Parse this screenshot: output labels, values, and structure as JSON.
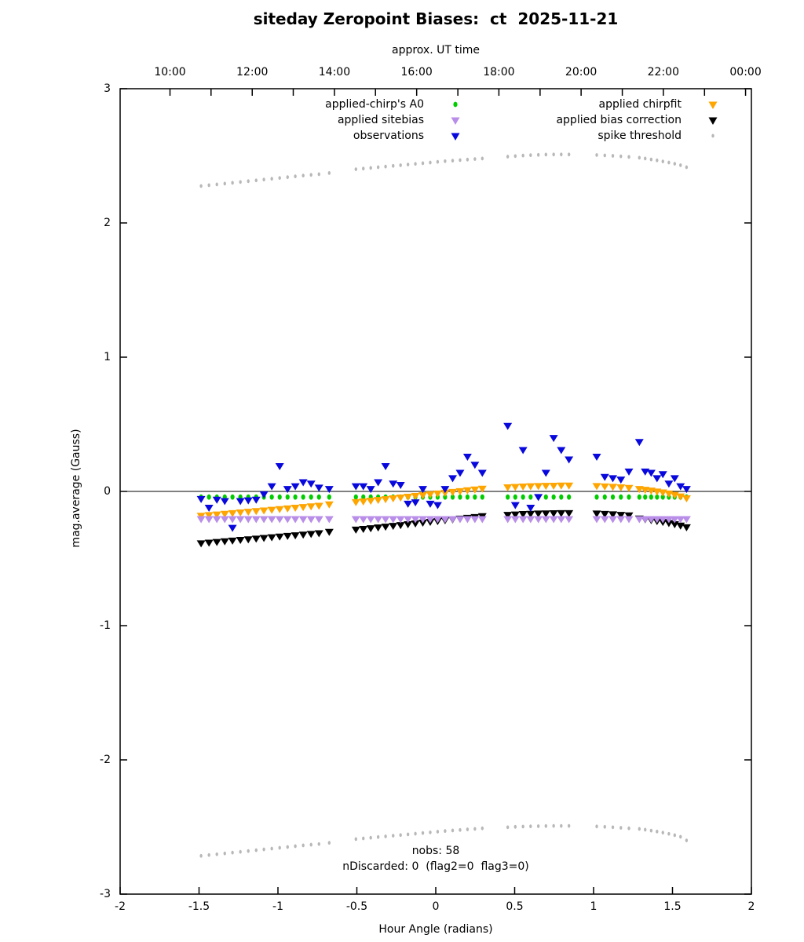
{
  "title": "siteday Zeropoint Biases:  ct  2025-11-21",
  "annotations": {
    "nobs": "nobs: 58",
    "ndiscarded": "nDiscarded: 0  (flag2=0  flag3=0)"
  },
  "axes": {
    "x2": {
      "label": "approx. UT time",
      "tick_labels": [
        "10:00",
        "12:00",
        "14:00",
        "16:00",
        "18:00",
        "20:00",
        "22:00",
        "00:00"
      ],
      "tick_positions_ha": [
        -1.684,
        -1.163,
        -0.642,
        -0.121,
        0.4,
        0.921,
        1.442,
        1.963
      ],
      "minor_tick_positions_ha": [
        -1.424,
        -0.903,
        -0.382,
        0.14,
        0.661,
        1.182,
        1.703
      ]
    },
    "x": {
      "label": "Hour Angle (radians)",
      "tick_labels": [
        "-2",
        "-1.5",
        "-1",
        "-0.5",
        "0",
        "0.5",
        "1",
        "1.5",
        "2"
      ],
      "tick_values": [
        -2,
        -1.5,
        -1,
        -0.5,
        0,
        0.5,
        1,
        1.5,
        2
      ],
      "range": [
        -2,
        2
      ]
    },
    "y": {
      "label": "mag.average (Gauss)",
      "tick_labels": [
        "3",
        "2",
        "1",
        "0",
        "-1",
        "-2",
        "-3"
      ],
      "tick_values": [
        3,
        2,
        1,
        0,
        -1,
        -2,
        -3
      ],
      "range": [
        -3,
        3
      ]
    }
  },
  "legend": {
    "left": [
      {
        "label": "applied-chirp's A0"
      },
      {
        "label": "applied sitebias"
      },
      {
        "label": "observations"
      }
    ],
    "right": [
      {
        "label": "applied chirpfit"
      },
      {
        "label": "applied bias correction"
      },
      {
        "label": "spike threshold"
      }
    ]
  },
  "colors": {
    "axis": "#000000",
    "zero_line": "#000000"
  },
  "chart_data": {
    "type": "scatter",
    "title": "siteday Zeropoint Biases:  ct  2025-11-21",
    "xlabel": "Hour Angle (radians)",
    "x2label": "approx. UT time",
    "ylabel": "mag.average (Gauss)",
    "xlim": [
      -2,
      2
    ],
    "ylim": [
      -3,
      3
    ],
    "grid": false,
    "zero_line": 0,
    "legend_position": "top-inside-two-columns",
    "n_points": 58,
    "x_hour_angle": [
      -1.487,
      -1.437,
      -1.387,
      -1.337,
      -1.288,
      -1.238,
      -1.188,
      -1.138,
      -1.089,
      -1.039,
      -0.989,
      -0.939,
      -0.89,
      -0.84,
      -0.79,
      -0.74,
      -0.675,
      -0.506,
      -0.459,
      -0.412,
      -0.365,
      -0.318,
      -0.27,
      -0.223,
      -0.176,
      -0.129,
      -0.082,
      -0.035,
      0.012,
      0.059,
      0.107,
      0.154,
      0.201,
      0.248,
      0.295,
      0.456,
      0.504,
      0.553,
      0.601,
      0.65,
      0.698,
      0.747,
      0.795,
      0.844,
      1.02,
      1.071,
      1.122,
      1.173,
      1.224,
      1.29,
      1.327,
      1.365,
      1.402,
      1.439,
      1.477,
      1.514,
      1.551,
      1.589
    ],
    "series": [
      {
        "name": "applied-chirp's A0",
        "marker": "dot",
        "color": "#00cc00",
        "constant_value": -0.042
      },
      {
        "name": "applied chirpfit",
        "marker": "triangle-down",
        "color": "#ffa500",
        "values": [
          -0.18,
          -0.175,
          -0.17,
          -0.165,
          -0.16,
          -0.155,
          -0.15,
          -0.145,
          -0.14,
          -0.135,
          -0.13,
          -0.125,
          -0.12,
          -0.115,
          -0.11,
          -0.105,
          -0.095,
          -0.078,
          -0.073,
          -0.068,
          -0.062,
          -0.056,
          -0.05,
          -0.044,
          -0.038,
          -0.032,
          -0.026,
          -0.02,
          -0.014,
          -0.008,
          -0.002,
          0.004,
          0.01,
          0.016,
          0.022,
          0.032,
          0.035,
          0.038,
          0.04,
          0.042,
          0.043,
          0.044,
          0.045,
          0.045,
          0.042,
          0.039,
          0.036,
          0.032,
          0.028,
          0.02,
          0.014,
          0.008,
          0.001,
          -0.006,
          -0.014,
          -0.024,
          -0.036,
          -0.05
        ]
      },
      {
        "name": "applied sitebias",
        "marker": "triangle-down",
        "color": "#b98ee8",
        "constant_value": -0.205
      },
      {
        "name": "applied bias correction",
        "marker": "triangle-down",
        "color": "#000000",
        "values": [
          -0.385,
          -0.38,
          -0.375,
          -0.37,
          -0.365,
          -0.36,
          -0.355,
          -0.35,
          -0.345,
          -0.34,
          -0.335,
          -0.33,
          -0.325,
          -0.32,
          -0.315,
          -0.31,
          -0.3,
          -0.283,
          -0.278,
          -0.273,
          -0.267,
          -0.261,
          -0.255,
          -0.249,
          -0.243,
          -0.237,
          -0.231,
          -0.225,
          -0.219,
          -0.213,
          -0.207,
          -0.201,
          -0.195,
          -0.189,
          -0.183,
          -0.173,
          -0.17,
          -0.167,
          -0.165,
          -0.163,
          -0.162,
          -0.161,
          -0.16,
          -0.16,
          -0.163,
          -0.166,
          -0.169,
          -0.173,
          -0.177,
          -0.2,
          -0.206,
          -0.212,
          -0.219,
          -0.226,
          -0.234,
          -0.243,
          -0.253,
          -0.265
        ]
      },
      {
        "name": "observations",
        "marker": "triangle-down",
        "color": "#0808dd",
        "values": [
          -0.055,
          -0.12,
          -0.06,
          -0.07,
          -0.27,
          -0.07,
          -0.065,
          -0.06,
          -0.02,
          0.04,
          0.19,
          0.02,
          0.04,
          0.07,
          0.06,
          0.03,
          0.02,
          0.04,
          0.04,
          0.02,
          0.07,
          0.19,
          0.06,
          0.05,
          -0.09,
          -0.08,
          0.02,
          -0.09,
          -0.1,
          0.02,
          0.1,
          0.14,
          0.26,
          0.2,
          0.14,
          0.49,
          -0.1,
          0.31,
          -0.12,
          -0.04,
          0.14,
          0.4,
          0.31,
          0.24,
          0.26,
          0.11,
          0.1,
          0.09,
          0.15,
          0.37,
          0.15,
          0.14,
          0.1,
          0.13,
          0.06,
          0.1,
          0.04,
          0.02
        ]
      },
      {
        "name": "spike threshold",
        "marker": "small-dot",
        "color": "#b8b8b8",
        "upper_values": [
          2.275,
          2.281,
          2.287,
          2.293,
          2.299,
          2.305,
          2.311,
          2.317,
          2.323,
          2.329,
          2.335,
          2.341,
          2.347,
          2.353,
          2.358,
          2.363,
          2.372,
          2.4,
          2.405,
          2.41,
          2.415,
          2.42,
          2.425,
          2.43,
          2.435,
          2.44,
          2.445,
          2.45,
          2.455,
          2.46,
          2.464,
          2.468,
          2.472,
          2.476,
          2.48,
          2.494,
          2.498,
          2.502,
          2.505,
          2.507,
          2.509,
          2.51,
          2.51,
          2.51,
          2.506,
          2.503,
          2.5,
          2.496,
          2.492,
          2.486,
          2.48,
          2.473,
          2.466,
          2.458,
          2.45,
          2.441,
          2.43,
          2.415
        ],
        "lower_values": [
          -2.715,
          -2.709,
          -2.703,
          -2.697,
          -2.691,
          -2.685,
          -2.679,
          -2.673,
          -2.667,
          -2.661,
          -2.655,
          -2.649,
          -2.643,
          -2.637,
          -2.632,
          -2.627,
          -2.618,
          -2.59,
          -2.585,
          -2.58,
          -2.575,
          -2.57,
          -2.565,
          -2.56,
          -2.555,
          -2.55,
          -2.545,
          -2.54,
          -2.535,
          -2.53,
          -2.526,
          -2.522,
          -2.518,
          -2.514,
          -2.51,
          -2.502,
          -2.499,
          -2.497,
          -2.495,
          -2.494,
          -2.493,
          -2.492,
          -2.492,
          -2.492,
          -2.496,
          -2.499,
          -2.502,
          -2.506,
          -2.51,
          -2.514,
          -2.52,
          -2.527,
          -2.534,
          -2.542,
          -2.551,
          -2.561,
          -2.573,
          -2.6
        ]
      }
    ]
  }
}
